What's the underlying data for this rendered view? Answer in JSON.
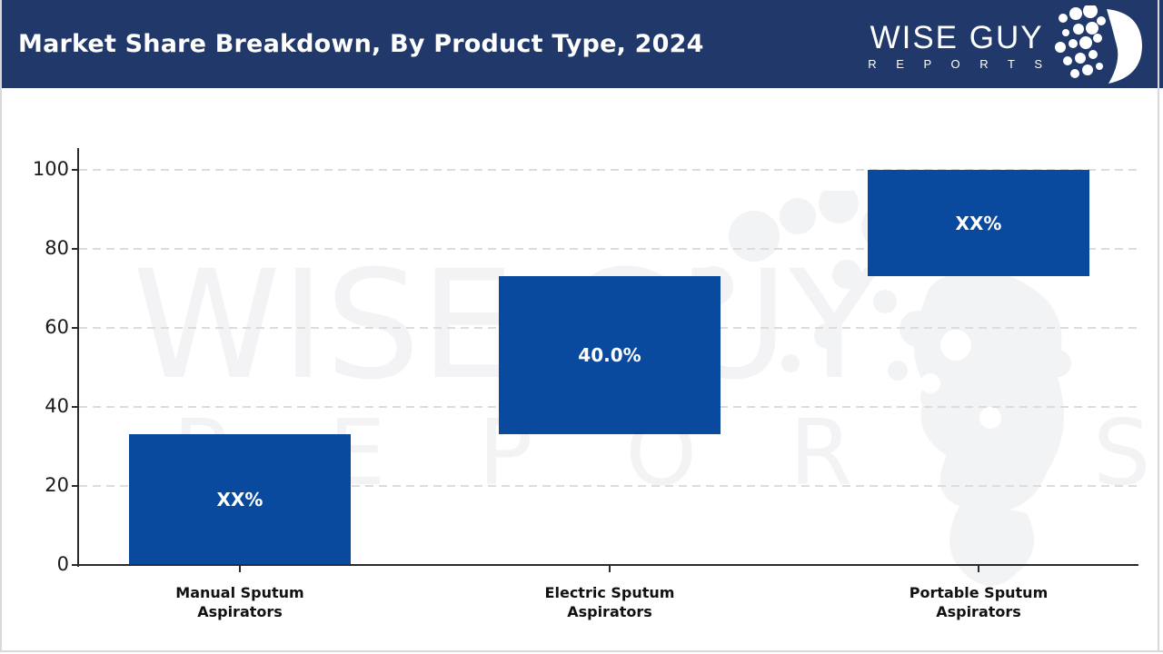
{
  "header": {
    "title": "Market Share Breakdown, By Product Type, 2024",
    "bg_color": "#21386a",
    "logo": {
      "line1": "WISE GUY",
      "line2": "R E P O R T S"
    }
  },
  "watermark": {
    "line1": "WISE GUY",
    "line2": "R E P O R T S"
  },
  "chart_data": {
    "type": "bar",
    "subtype": "floating-waterfall",
    "title": "Market Share Breakdown, By Product Type, 2024",
    "categories": [
      "Manual Sputum Aspirators",
      "Electric Sputum Aspirators",
      "Portable Sputum Aspirators"
    ],
    "bars": [
      {
        "category": "Manual Sputum Aspirators",
        "start": 0,
        "end": 33,
        "label": "XX%"
      },
      {
        "category": "Electric Sputum Aspirators",
        "start": 33,
        "end": 73,
        "label": "40.0%"
      },
      {
        "category": "Portable Sputum Aspirators",
        "start": 73,
        "end": 100,
        "label": "XX%"
      }
    ],
    "xlabel": "",
    "ylabel": "",
    "ylim": [
      0,
      100
    ],
    "yticks": [
      0,
      20,
      40,
      60,
      80,
      100
    ],
    "grid": "horizontal-dashed",
    "legend": "none",
    "bar_color": "#0a4a9e",
    "bar_label_color": "#ffffff",
    "axis_color": "#2b2b2b",
    "grid_color": "#dcdcdc"
  }
}
